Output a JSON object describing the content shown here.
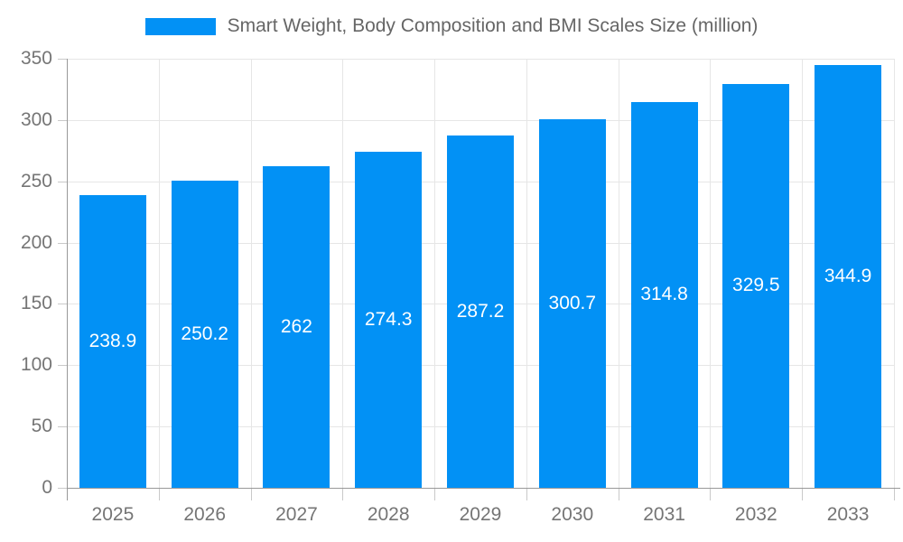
{
  "colors": {
    "bar": "#0291f5",
    "grid": "#e6e6e6",
    "axis": "#999999",
    "tick": "#c9c9c9",
    "axis_label": "#757575",
    "title_text": "#666666",
    "bar_label": "#ffffff"
  },
  "chart_data": {
    "type": "bar",
    "title": "Smart Weight, Body Composition and BMI Scales Size (million)",
    "categories": [
      "2025",
      "2026",
      "2027",
      "2028",
      "2029",
      "2030",
      "2031",
      "2032",
      "2033"
    ],
    "values": [
      238.9,
      250.2,
      262,
      274.3,
      287.2,
      300.7,
      314.8,
      329.5,
      344.9
    ],
    "value_labels": [
      "238.9",
      "250.2",
      "262",
      "274.3",
      "287.2",
      "300.7",
      "314.8",
      "329.5",
      "344.9"
    ],
    "xlabel": "",
    "ylabel": "",
    "ylim": [
      0,
      350
    ],
    "yticks": [
      0,
      50,
      100,
      150,
      200,
      250,
      300,
      350
    ],
    "grid": true,
    "legend_position": "top",
    "value_label_position": "center-inside"
  }
}
